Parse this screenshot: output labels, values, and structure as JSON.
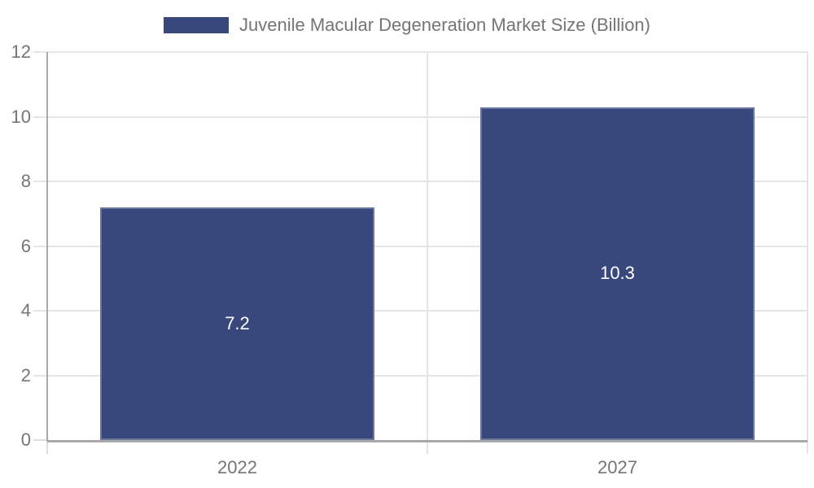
{
  "legend": {
    "label": "Juvenile Macular Degeneration Market Size (Billion)"
  },
  "chart_data": {
    "type": "bar",
    "title": "",
    "legend_label": "Juvenile Macular Degeneration Market Size (Billion)",
    "legend_position": "top",
    "categories": [
      "2022",
      "2027"
    ],
    "values": [
      7.2,
      10.3
    ],
    "value_labels": [
      "7.2",
      "10.3"
    ],
    "xlabel": "",
    "ylabel": "",
    "ylim": [
      0,
      12
    ],
    "yticks": [
      0,
      2,
      4,
      6,
      8,
      10,
      12
    ],
    "ytick_labels": [
      "0",
      "2",
      "4",
      "6",
      "8",
      "10",
      "12"
    ],
    "grid": true,
    "colors": {
      "bar_fill": "#38487D",
      "grid_line": "#e5e5e5",
      "tick_line": "#dedede",
      "axis_line": "#a9a9a9",
      "tick_label": "#757575",
      "legend_text": "#757575",
      "value_label": "#ffffff",
      "background": "#ffffff"
    }
  }
}
